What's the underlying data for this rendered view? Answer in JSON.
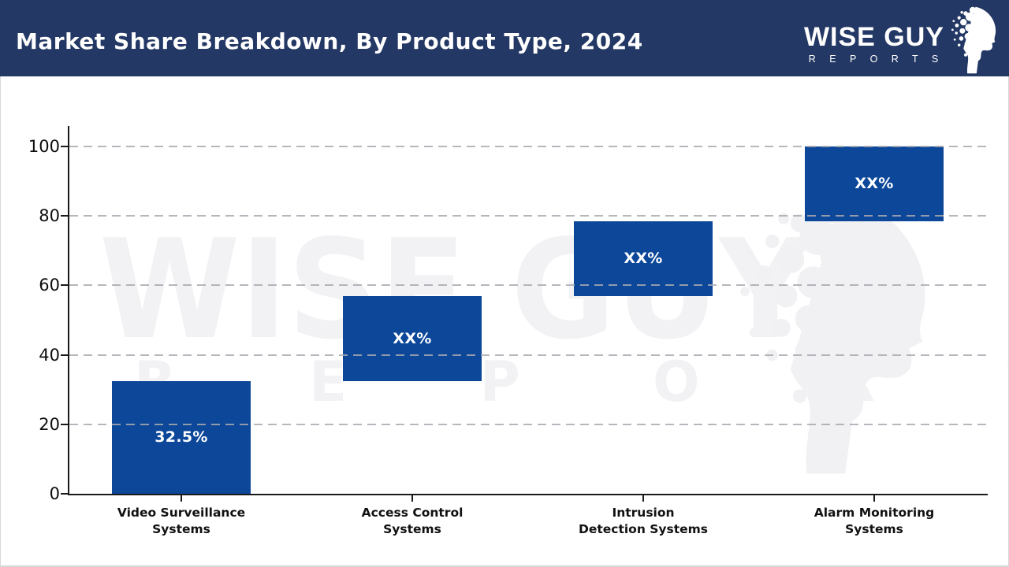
{
  "header": {
    "title": "Market Share Breakdown, By Product Type, 2024"
  },
  "brand": {
    "line1": "WISE GUY",
    "line2": "R E P O R T S"
  },
  "watermark": {
    "line1": "WISE GUY",
    "line2": "R E P O R T S"
  },
  "chart_data": {
    "type": "bar",
    "subtype": "floating-waterfall-stacked",
    "title": "Market Share Breakdown, By Product Type, 2024",
    "categories": [
      [
        "Video Surveillance",
        "Systems"
      ],
      [
        "Access Control",
        "Systems"
      ],
      [
        "Intrusion",
        "Detection Systems"
      ],
      [
        "Alarm Monitoring",
        "Systems"
      ]
    ],
    "bars": [
      {
        "start": 0,
        "end": 32.5,
        "label": "32.5%"
      },
      {
        "start": 32.5,
        "end": 57,
        "label": "XX%"
      },
      {
        "start": 57,
        "end": 78.5,
        "label": "XX%"
      },
      {
        "start": 78.5,
        "end": 100,
        "label": "XX%"
      }
    ],
    "yticks": [
      0,
      20,
      40,
      60,
      80,
      100
    ],
    "ylim": [
      0,
      105
    ],
    "xlabel": "",
    "ylabel": "",
    "grid": "horizontal-dashed-over-bars",
    "legend": "none",
    "bar_color": "#0c4799",
    "bar_label_color": "#ffffff",
    "axis_color": "#1a1a1a",
    "header_bg": "#233864",
    "grid_color": "#a8aab0"
  }
}
